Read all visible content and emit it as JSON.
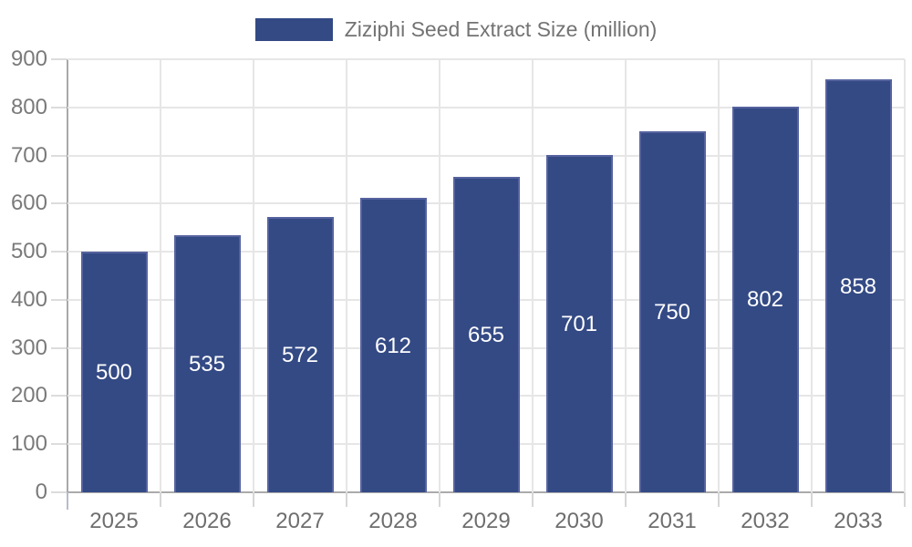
{
  "legend": {
    "label": "Ziziphi Seed Extract Size (million)"
  },
  "chart_data": {
    "type": "bar",
    "title": "Ziziphi Seed Extract Size (million)",
    "legend_entries": [
      "Ziziphi Seed Extract Size (million)"
    ],
    "legend_position": "top-center",
    "categories": [
      "2025",
      "2026",
      "2027",
      "2028",
      "2029",
      "2030",
      "2031",
      "2032",
      "2033"
    ],
    "series": [
      {
        "name": "Ziziphi Seed Extract Size (million)",
        "values": [
          500,
          535,
          572,
          612,
          655,
          701,
          750,
          802,
          858
        ]
      }
    ],
    "bar_value_labels": [
      "500",
      "535",
      "572",
      "612",
      "655",
      "701",
      "750",
      "802",
      "858"
    ],
    "xlabel": "",
    "ylabel": "",
    "ylim": [
      0,
      900
    ],
    "yticks": [
      0,
      100,
      200,
      300,
      400,
      500,
      600,
      700,
      800,
      900
    ],
    "grid": "both",
    "colors": {
      "bar_fill": "#344a85",
      "bar_border": "#56639f",
      "bar_label": "#ffffff",
      "gridline": "#e6e6e6",
      "axis_line": "#a9a9a9",
      "y_tick_label": "#7a7a7a",
      "x_tick_label": "#6e6e6e",
      "legend_text": "#737373",
      "background": "#ffffff"
    }
  }
}
